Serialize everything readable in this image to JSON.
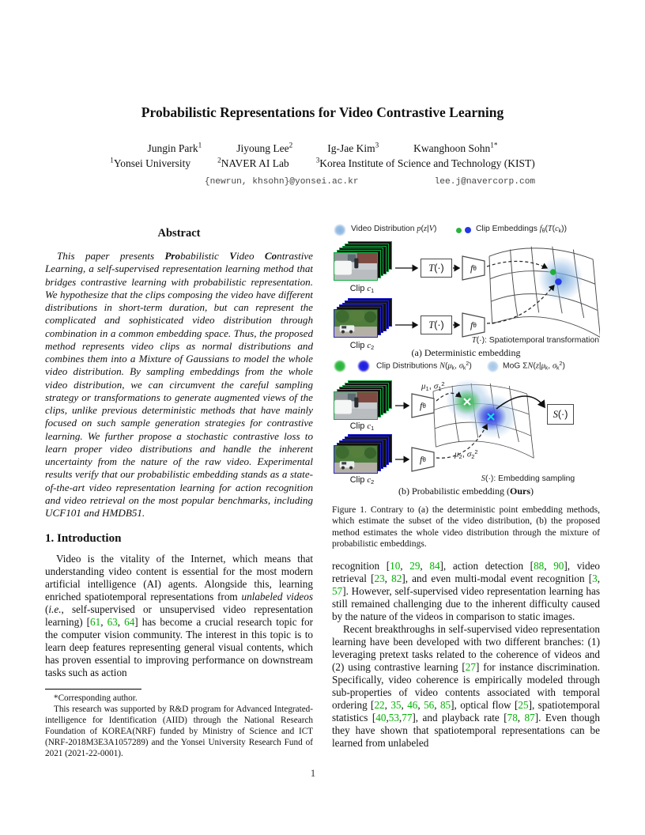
{
  "page": {
    "number": "1"
  },
  "colors": {
    "cite_green": "#00b300",
    "clip_green": "#0fae3e",
    "clip_blue": "#2121dd",
    "dist_blue": "#8fb8e2",
    "mog_blue": "#a9c9e8"
  },
  "header": {
    "title": "Probabilistic Representations for Video Contrastive Learning",
    "authors": [
      {
        "name": "Jungin Park",
        "sup": "1"
      },
      {
        "name": "Jiyoung Lee",
        "sup": "2"
      },
      {
        "name": "Ig-Jae Kim",
        "sup": "3"
      },
      {
        "name": "Kwanghoon Sohn",
        "sup": "1*"
      }
    ],
    "affiliations": [
      {
        "sup": "1",
        "name": "Yonsei University"
      },
      {
        "sup": "2",
        "name": "NAVER AI Lab"
      },
      {
        "sup": "3",
        "name": "Korea Institute of Science and Technology (KIST)"
      }
    ],
    "emails": [
      "{newrun, khsohn}@yonsei.ac.kr",
      "lee.j@navercorp.com"
    ]
  },
  "abstract": {
    "heading": "Abstract",
    "segments": [
      {
        "t": "This paper presents "
      },
      {
        "t": "Pro",
        "c": "b"
      },
      {
        "t": "babilistic "
      },
      {
        "t": "V",
        "c": "b"
      },
      {
        "t": "ideo "
      },
      {
        "t": "Co",
        "c": "b"
      },
      {
        "t": "ntrastive Learning, a self-supervised representation learning method that bridges contrastive learning with probabilistic representation. We hypothesize that the clips composing the video have different distributions in short-term duration, but can represent the complicated and sophisticated video distribution through combination in a common embedding space. Thus, the proposed method represents video clips as normal distributions and combines them into a Mixture of Gaussians to model the whole video distribution. By sampling embeddings from the whole video distribution, we can circumvent the careful sampling strategy or transformations to generate augmented views of the clips, unlike previous deterministic methods that have mainly focused on such sample generation strategies for contrastive learning. We further propose a stochastic contrastive loss to learn proper video distributions and handle the inherent uncertainty from the nature of the raw video. Experimental results verify that our probabilistic embedding stands as a state-of-the-art video representation learning for action recognition and video retrieval on the most popular benchmarks, including UCF101 and HMDB51."
      }
    ]
  },
  "introduction": {
    "heading": "1. Introduction",
    "paragraphs": [
      {
        "segments": [
          {
            "t": "Video is the vitality of the Internet, which means that understanding video content is essential for the most modern artificial intelligence (AI) agents. Alongside this, learning enriched spatiotemporal representations from "
          },
          {
            "t": "unlabeled videos",
            "c": "it"
          },
          {
            "t": " ("
          },
          {
            "t": "i.e.",
            "c": "it"
          },
          {
            "t": ", self-supervised or unsupervised video representation learning) ["
          },
          {
            "t": "61",
            "c": "cite"
          },
          {
            "t": ", "
          },
          {
            "t": "63",
            "c": "cite"
          },
          {
            "t": ", "
          },
          {
            "t": "64",
            "c": "cite"
          },
          {
            "t": "] has become a crucial research topic for the computer vision community. The interest in this topic is to learn deep features representing general visual contents, which has proven essential to improving performance on downstream tasks such as action"
          }
        ]
      }
    ]
  },
  "right_column": {
    "paragraphs": [
      {
        "segments": [
          {
            "t": "recognition ["
          },
          {
            "t": "10",
            "c": "cite"
          },
          {
            "t": ", "
          },
          {
            "t": "29",
            "c": "cite"
          },
          {
            "t": ", "
          },
          {
            "t": "84",
            "c": "cite"
          },
          {
            "t": "], action detection ["
          },
          {
            "t": "88",
            "c": "cite"
          },
          {
            "t": ", "
          },
          {
            "t": "90",
            "c": "cite"
          },
          {
            "t": "], video retrieval ["
          },
          {
            "t": "23",
            "c": "cite"
          },
          {
            "t": ", "
          },
          {
            "t": "82",
            "c": "cite"
          },
          {
            "t": "], and even multi-modal event recognition ["
          },
          {
            "t": "3",
            "c": "cite"
          },
          {
            "t": ", "
          },
          {
            "t": "57",
            "c": "cite"
          },
          {
            "t": "]. However, self-supervised video representation learning has still remained challenging due to the inherent difficulty caused by the nature of the videos in comparison to static images."
          }
        ]
      },
      {
        "segments": [
          {
            "t": "Recent breakthroughs in self-supervised video representation learning have been developed with two different branches: (1) leveraging pretext tasks related to the coherence of videos and (2) using contrastive learning ["
          },
          {
            "t": "27",
            "c": "cite"
          },
          {
            "t": "] for instance discrimination. Specifically, video coherence is empirically modeled through sub-properties of video contents associated with temporal ordering ["
          },
          {
            "t": "22",
            "c": "cite"
          },
          {
            "t": ", "
          },
          {
            "t": "35",
            "c": "cite"
          },
          {
            "t": ", "
          },
          {
            "t": "46",
            "c": "cite"
          },
          {
            "t": ", "
          },
          {
            "t": "56",
            "c": "cite"
          },
          {
            "t": ", "
          },
          {
            "t": "85",
            "c": "cite"
          },
          {
            "t": "], optical flow ["
          },
          {
            "t": "25",
            "c": "cite"
          },
          {
            "t": "], spatiotemporal statistics ["
          },
          {
            "t": "40",
            "c": "cite"
          },
          {
            "t": ","
          },
          {
            "t": "53",
            "c": "cite"
          },
          {
            "t": ","
          },
          {
            "t": "77",
            "c": "cite"
          },
          {
            "t": "], and playback rate ["
          },
          {
            "t": "78",
            "c": "cite"
          },
          {
            "t": ", "
          },
          {
            "t": "87",
            "c": "cite"
          },
          {
            "t": "]. Even though they have shown that spatiotemporal representations can be learned from unlabeled"
          }
        ]
      }
    ]
  },
  "figure1": {
    "legend_a": {
      "video_dist": [
        {
          "t": "Video Distribution "
        },
        {
          "t": "p",
          "c": "mi"
        },
        {
          "t": "("
        },
        {
          "t": "z",
          "c": "mi"
        },
        {
          "t": "|"
        },
        {
          "t": "V",
          "c": "mi"
        },
        {
          "t": ")"
        }
      ],
      "clip_embed": [
        {
          "t": "Clip Embeddings "
        },
        {
          "t": "f",
          "c": "mi"
        },
        {
          "t": "θ",
          "c": "sub"
        },
        {
          "t": "("
        },
        {
          "t": "T",
          "c": "mi"
        },
        {
          "t": "("
        },
        {
          "t": "c",
          "c": "mi"
        },
        {
          "t": "k",
          "c": "sub"
        },
        {
          "t": "))"
        }
      ]
    },
    "legend_b": {
      "clip_dist": [
        {
          "t": "Clip Distributions "
        },
        {
          "t": "N",
          "c": "mi"
        },
        {
          "t": "("
        },
        {
          "t": "μ",
          "c": "mi"
        },
        {
          "t": "k",
          "c": "sub"
        },
        {
          "t": ", "
        },
        {
          "t": "σ",
          "c": "mi"
        },
        {
          "t": "k",
          "c": "sub"
        },
        {
          "t": "2",
          "c": "sup"
        },
        {
          "t": ")"
        }
      ],
      "mog": [
        {
          "t": "MoG Σ"
        },
        {
          "t": "N",
          "c": "mi"
        },
        {
          "t": "("
        },
        {
          "t": "z",
          "c": "mi"
        },
        {
          "t": "|"
        },
        {
          "t": "μ",
          "c": "mi"
        },
        {
          "t": "k",
          "c": "sub"
        },
        {
          "t": ", "
        },
        {
          "t": "σ",
          "c": "mi"
        },
        {
          "t": "k",
          "c": "sub"
        },
        {
          "t": "2",
          "c": "sup"
        },
        {
          "t": ")"
        }
      ]
    },
    "clip1_label": [
      {
        "t": "Clip "
      },
      {
        "t": "c",
        "c": "mi"
      },
      {
        "t": "1",
        "c": "sub"
      }
    ],
    "clip2_label": [
      {
        "t": "Clip "
      },
      {
        "t": "c",
        "c": "mi"
      },
      {
        "t": "2",
        "c": "sub"
      }
    ],
    "t_box": [
      {
        "t": "T",
        "c": "mi"
      },
      {
        "t": "(·)"
      }
    ],
    "f_box": [
      {
        "t": "f",
        "c": "mi"
      },
      {
        "t": "θ",
        "c": "sub"
      }
    ],
    "s_box": [
      {
        "t": "S",
        "c": "mi"
      },
      {
        "t": "(·)"
      }
    ],
    "t_note": [
      {
        "t": "T",
        "c": "mi"
      },
      {
        "t": "(·): Spatiotemporal transformation"
      }
    ],
    "s_note": [
      {
        "t": "S",
        "c": "mi"
      },
      {
        "t": "(·): Embedding sampling"
      }
    ],
    "mu1": [
      {
        "t": "μ",
        "c": "mi"
      },
      {
        "t": "1",
        "c": "sub"
      },
      {
        "t": ", "
      },
      {
        "t": "σ",
        "c": "mi"
      },
      {
        "t": "1",
        "c": "sub"
      },
      {
        "t": "2",
        "c": "sup"
      }
    ],
    "mu2": [
      {
        "t": "μ",
        "c": "mi"
      },
      {
        "t": "2",
        "c": "sub"
      },
      {
        "t": ", "
      },
      {
        "t": "σ",
        "c": "mi"
      },
      {
        "t": "2",
        "c": "sub"
      },
      {
        "t": "2",
        "c": "sup"
      }
    ],
    "cap_a": "(a) Deterministic embedding",
    "cap_b": [
      {
        "t": "(b) Probabilistic embedding ("
      },
      {
        "t": "Ours",
        "c": "b"
      },
      {
        "t": ")"
      }
    ],
    "caption": "Figure 1. Contrary to (a) the deterministic point embedding methods, which estimate the subset of the video distribution, (b) the proposed method estimates the whole video distribution through the mixture of probabilistic embeddings."
  },
  "footnote": {
    "line1": "*Corresponding author.",
    "body": "This research was supported by R&D program for Advanced Integrated-intelligence for Identification (AIID) through the National Research Foundation of KOREA(NRF) funded by Ministry of Science and ICT (NRF-2018M3E3A1057289) and the Yonsei University Research Fund of 2021 (2021-22-0001)."
  }
}
